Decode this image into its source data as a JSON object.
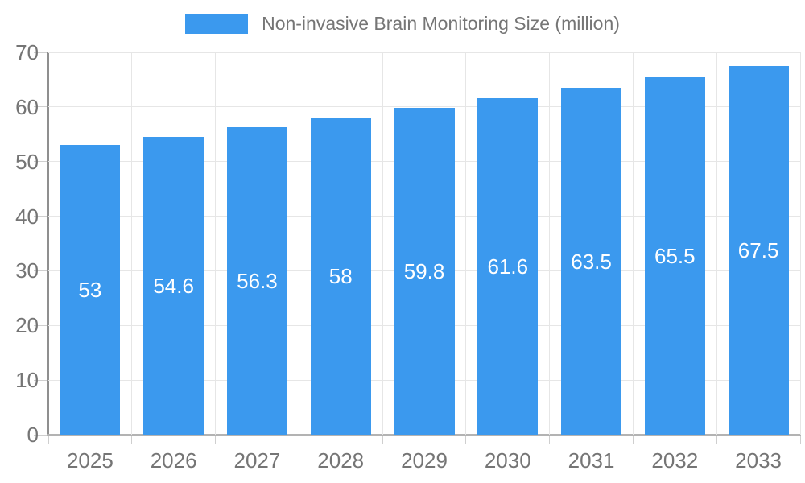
{
  "legend": {
    "label": "Non-invasive Brain Monitoring Size (million)"
  },
  "colors": {
    "bar": "#3b99ee",
    "axis_text": "#757575",
    "value_label": "#ffffff",
    "grid": "#e6e6e6",
    "axis_line": "#8f8f8f"
  },
  "chart_data": {
    "type": "bar",
    "title": "",
    "legend": "Non-invasive Brain Monitoring Size (million)",
    "legend_position": "top-center",
    "categories": [
      "2025",
      "2026",
      "2027",
      "2028",
      "2029",
      "2030",
      "2031",
      "2032",
      "2033"
    ],
    "values": [
      53,
      54.6,
      56.3,
      58,
      59.8,
      61.6,
      63.5,
      65.5,
      67.5
    ],
    "value_labels": [
      "53",
      "54.6",
      "56.3",
      "58",
      "59.8",
      "61.6",
      "63.5",
      "65.5",
      "67.5"
    ],
    "xlabel": "",
    "ylabel": "",
    "ylim": [
      0,
      70
    ],
    "yticks": [
      0,
      10,
      20,
      30,
      40,
      50,
      60,
      70
    ],
    "grid": true,
    "value_labels_inside_bars": true
  }
}
